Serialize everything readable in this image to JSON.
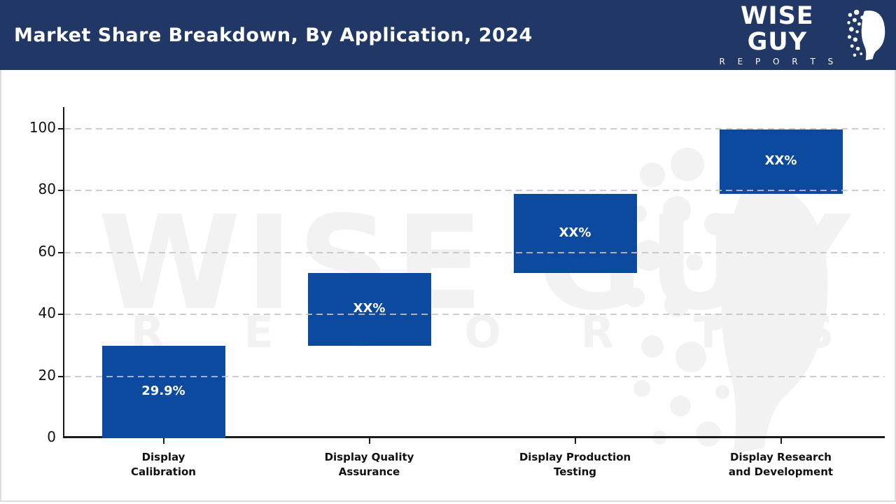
{
  "header": {
    "title": "Market Share Breakdown, By Application, 2024",
    "logo_line1": "WISE GUY",
    "logo_line2": "R E P O R T S"
  },
  "watermark": {
    "line1": "WISE GUY",
    "line2": "R E P O R T S"
  },
  "colors": {
    "header_bg": "#213765",
    "bar": "#0c4aa0",
    "grid": "#c3c3c3",
    "axis": "#1a1a1a",
    "value_text": "#ffffff",
    "watermark": "#f2f2f2",
    "frame_border": "#dcdcdc"
  },
  "chart_data": {
    "type": "bar",
    "subtype": "waterfall",
    "title": "Market Share Breakdown, By Application, 2024",
    "categories": [
      "Display\nCalibration",
      "Display Quality\nAssurance",
      "Display Production\nTesting",
      "Display Research\nand Development"
    ],
    "series": [
      {
        "name": "Market Share (%)",
        "segments": [
          {
            "start": 0,
            "end": 29.9,
            "label": "29.9%"
          },
          {
            "start": 29.9,
            "end": 53.3,
            "label": "XX%"
          },
          {
            "start": 53.4,
            "end": 78.9,
            "label": "XX%"
          },
          {
            "start": 79.0,
            "end": 99.7,
            "label": "XX%"
          }
        ]
      }
    ],
    "yticks": [
      0,
      20,
      40,
      60,
      80,
      100
    ],
    "ylim": [
      0,
      107
    ],
    "xlabel": "",
    "ylabel": "",
    "grid": "horizontal-dashed",
    "legend_position": "none"
  }
}
